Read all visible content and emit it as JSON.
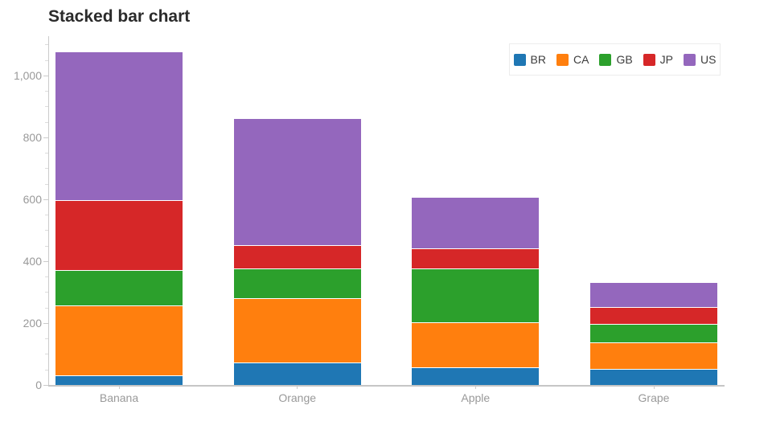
{
  "chart_data": {
    "type": "bar",
    "stacked": true,
    "title": "Stacked bar chart",
    "categories": [
      "Banana",
      "Orange",
      "Apple",
      "Grape"
    ],
    "series": [
      {
        "name": "BR",
        "color": "#1f77b4",
        "values": [
          30,
          70,
          55,
          50
        ]
      },
      {
        "name": "CA",
        "color": "#ff7f0e",
        "values": [
          225,
          210,
          145,
          85
        ]
      },
      {
        "name": "GB",
        "color": "#2ca02c",
        "values": [
          115,
          95,
          175,
          60
        ]
      },
      {
        "name": "JP",
        "color": "#d62728",
        "values": [
          225,
          75,
          65,
          55
        ]
      },
      {
        "name": "US",
        "color": "#9467bd",
        "values": [
          480,
          410,
          165,
          80
        ]
      }
    ],
    "totals": [
      1075,
      860,
      605,
      330
    ],
    "xlabel": "",
    "ylabel": "",
    "y_ticks": [
      "0",
      "200",
      "400",
      "600",
      "800",
      "1,000"
    ],
    "y_tick_values": [
      0,
      200,
      400,
      600,
      800,
      1000
    ],
    "minor_tick_step": 50,
    "ylim": [
      0,
      1128
    ],
    "grid": false,
    "legend_position": "top-right",
    "legend_entries": [
      "BR",
      "CA",
      "GB",
      "JP",
      "US"
    ],
    "colors": {
      "axis_line": "#cbcbcb",
      "tick_label": "#999999",
      "title_text": "#2b2b2b",
      "legend_border": "#ececec",
      "legend_text": "#3d3d3d",
      "background": "#ffffff",
      "segment_divider": "#ffffff"
    }
  }
}
